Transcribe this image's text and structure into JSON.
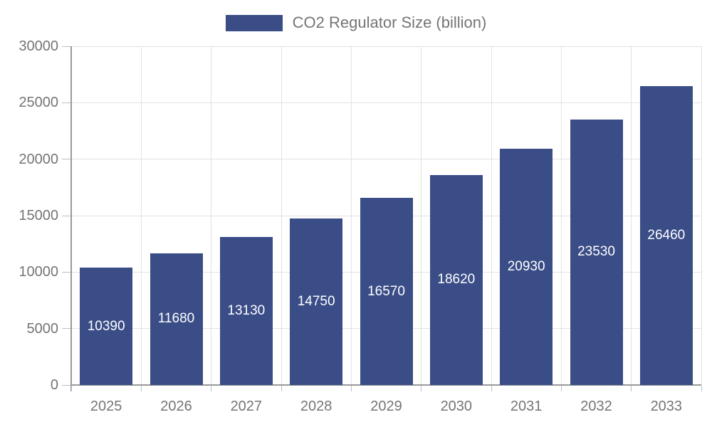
{
  "legend": {
    "label": "CO2 Regulator Size (billion)"
  },
  "colors": {
    "bar": "#3A4D87",
    "axis_line": "#999999",
    "gridline": "#E2E2E2",
    "tick": "#B9BECB",
    "axis_text": "#757575",
    "value_text": "#FFFFFF",
    "background": "#FFFFFF"
  },
  "chart_data": {
    "type": "bar",
    "title": "",
    "xlabel": "",
    "ylabel": "",
    "categories": [
      "2025",
      "2026",
      "2027",
      "2028",
      "2029",
      "2030",
      "2031",
      "2032",
      "2033"
    ],
    "series": [
      {
        "name": "CO2 Regulator Size (billion)",
        "values": [
          10390,
          11680,
          13130,
          14750,
          16570,
          18620,
          20930,
          23530,
          26460
        ]
      }
    ],
    "value_labels": [
      10390,
      11680,
      13130,
      14750,
      16570,
      18620,
      20930,
      23530,
      26460
    ],
    "value_label_position": "inside-center",
    "ylim": [
      0,
      30000
    ],
    "yticks": [
      0,
      5000,
      10000,
      15000,
      20000,
      25000,
      30000
    ],
    "grid": true,
    "legend_position": "top-center"
  }
}
